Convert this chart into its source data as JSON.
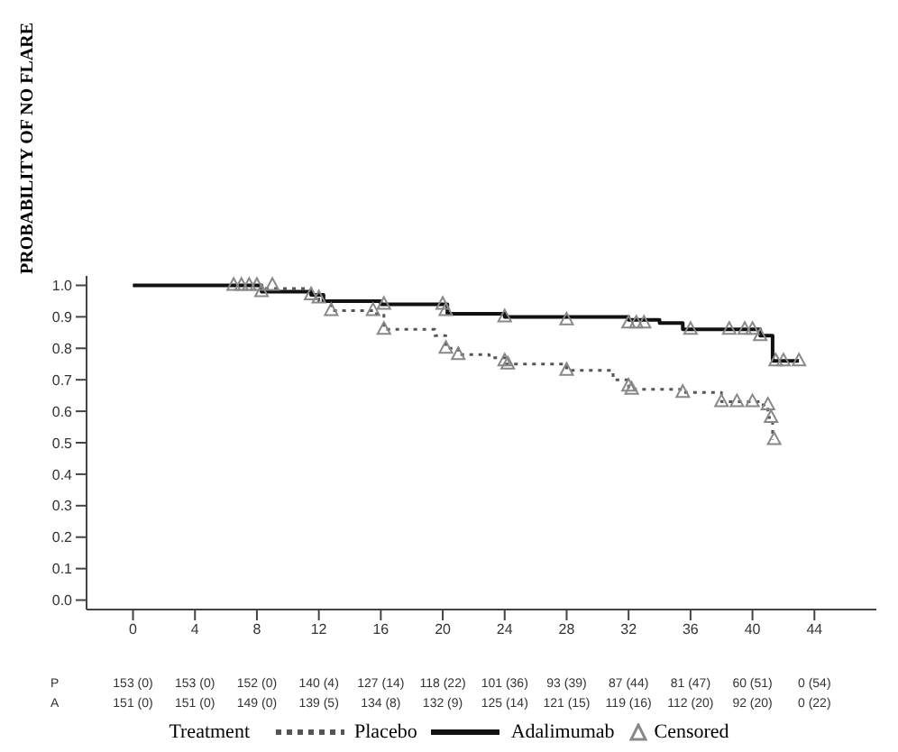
{
  "chart_data": {
    "type": "step",
    "ylabel": "PROBABILITY OF NO FLARE",
    "legend_title": "Treatment",
    "legend": "bottom",
    "grid": false,
    "xlim": [
      -3,
      48
    ],
    "xticks": [
      0,
      4,
      8,
      12,
      16,
      20,
      24,
      28,
      32,
      36,
      40,
      44
    ],
    "ylim": [
      -0.03,
      1.03
    ],
    "yticks": [
      {
        "value": 0,
        "label": "0.0"
      },
      {
        "value": 0.1,
        "label": "0.1"
      },
      {
        "value": 0.2,
        "label": "0.2"
      },
      {
        "value": 0.3,
        "label": "0.3"
      },
      {
        "value": 0.4,
        "label": "0.4"
      },
      {
        "value": 0.5,
        "label": "0.5"
      },
      {
        "value": 0.6,
        "label": "0.6"
      },
      {
        "value": 0.7,
        "label": "0.7"
      },
      {
        "value": 0.8,
        "label": "0.8"
      },
      {
        "value": 0.9,
        "label": "0.9"
      },
      {
        "value": 1,
        "label": "1.0"
      }
    ],
    "series": [
      {
        "name": "Placebo",
        "color": "#555555",
        "line_style": "dotted",
        "marker": "none",
        "x": [
          0,
          8,
          8.2,
          11.5,
          12,
          12.8,
          15.5,
          16.2,
          19.5,
          20.2,
          21,
          23,
          24,
          28,
          31,
          32,
          35.5,
          38,
          40.5,
          41,
          41.3
        ],
        "values": [
          1,
          1,
          0.99,
          0.97,
          0.95,
          0.92,
          0.91,
          0.86,
          0.84,
          0.8,
          0.78,
          0.77,
          0.75,
          0.73,
          0.7,
          0.67,
          0.66,
          0.63,
          0.62,
          0.58,
          0.51
        ]
      },
      {
        "name": "Adalimumab",
        "color": "#111111",
        "line_style": "solid",
        "marker": "none",
        "x": [
          0,
          8,
          8.3,
          11.5,
          12.3,
          15,
          16,
          20.3,
          24,
          32,
          34,
          35.5,
          40.5,
          41.3,
          43
        ],
        "values": [
          1,
          1,
          0.98,
          0.97,
          0.95,
          0.95,
          0.94,
          0.91,
          0.9,
          0.89,
          0.88,
          0.86,
          0.84,
          0.76,
          0.76
        ]
      },
      {
        "name": "Censored",
        "type": "scatter",
        "color": "#888888",
        "marker": "triangle",
        "x": [
          6.5,
          7,
          7.5,
          8,
          9,
          11.5,
          12,
          12.8,
          15.5,
          16.2,
          20.2,
          21,
          24,
          24.2,
          28,
          32,
          32.2,
          35.5,
          38,
          39,
          40,
          41,
          41.2,
          41.4,
          8.3,
          16.2,
          20,
          20.2,
          24,
          28,
          32,
          32.5,
          33,
          36,
          38.5,
          39.5,
          40,
          40.5,
          41.5,
          42,
          43
        ],
        "values": [
          1,
          1,
          1,
          1,
          1,
          0.97,
          0.96,
          0.92,
          0.92,
          0.86,
          0.8,
          0.78,
          0.76,
          0.75,
          0.73,
          0.68,
          0.67,
          0.66,
          0.63,
          0.63,
          0.63,
          0.62,
          0.58,
          0.51,
          0.98,
          0.94,
          0.94,
          0.92,
          0.9,
          0.89,
          0.88,
          0.88,
          0.88,
          0.86,
          0.86,
          0.86,
          0.86,
          0.84,
          0.76,
          0.76,
          0.76
        ]
      }
    ],
    "annotations": [
      "P",
      "153 (0)",
      "153 (0)",
      "152 (0)",
      "140 (4)",
      "127 (14)",
      "118 (22)",
      "101 (36)",
      "93 (39)",
      "87 (44)",
      "81 (47)",
      "60 (51)",
      "0 (54)",
      "A",
      "151 (0)",
      "151 (0)",
      "149 (0)",
      "139 (5)",
      "134 (8)",
      "132 (9)",
      "125 (14)",
      "121 (15)",
      "119 (16)",
      "112 (20)",
      "92 (20)",
      "0 (22)"
    ]
  }
}
